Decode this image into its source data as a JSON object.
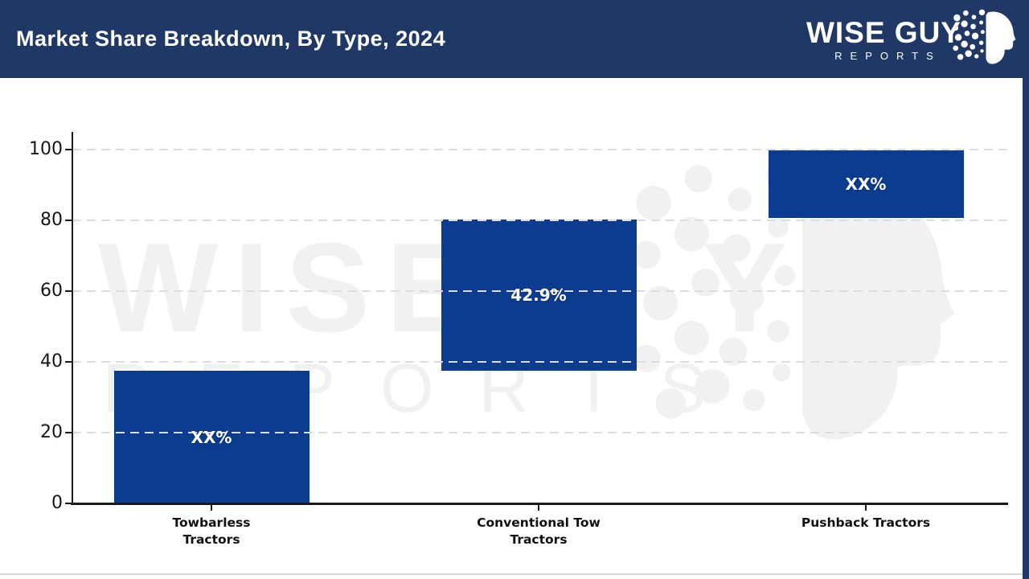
{
  "header": {
    "title": "Market Share Breakdown, By Type, 2024",
    "logo": {
      "line1": "WISE GUY",
      "line2": "REPORTS"
    }
  },
  "watermark": {
    "line1": "WISE G Y",
    "line2": "REPORTS"
  },
  "colors": {
    "header_bg": "#1f3865",
    "bar": "#0c3c90",
    "grid": "#dddddf",
    "axis": "#1a1a1a",
    "title_text": "#ffffff",
    "watermark": "#f1f1f4"
  },
  "chart_data": {
    "type": "bar",
    "variant": "floating_segment_bars",
    "title": "Market Share Breakdown, By Type, 2024",
    "categories": [
      "Towbarless Tractors",
      "Conventional Tow Tractors",
      "Pushback Tractors"
    ],
    "cat_lines": [
      [
        "Towbarless",
        "Tractors"
      ],
      [
        "Conventional Tow",
        "Tractors"
      ],
      [
        "Pushback Tractors",
        ""
      ]
    ],
    "bars": [
      {
        "category": "Towbarless Tractors",
        "label": "XX%",
        "range": [
          0,
          37.5
        ]
      },
      {
        "category": "Conventional Tow Tractors",
        "label": "42.9%",
        "range": [
          37.4,
          80.3
        ]
      },
      {
        "category": "Pushback Tractors",
        "label": "XX%",
        "range": [
          80.6,
          99.8
        ]
      }
    ],
    "xlabel": "",
    "ylabel": "",
    "ylim": [
      0,
      105
    ],
    "yticks": [
      0,
      20,
      40,
      60,
      80,
      100
    ],
    "grid": "horizontal-dashed",
    "legend": "none"
  }
}
